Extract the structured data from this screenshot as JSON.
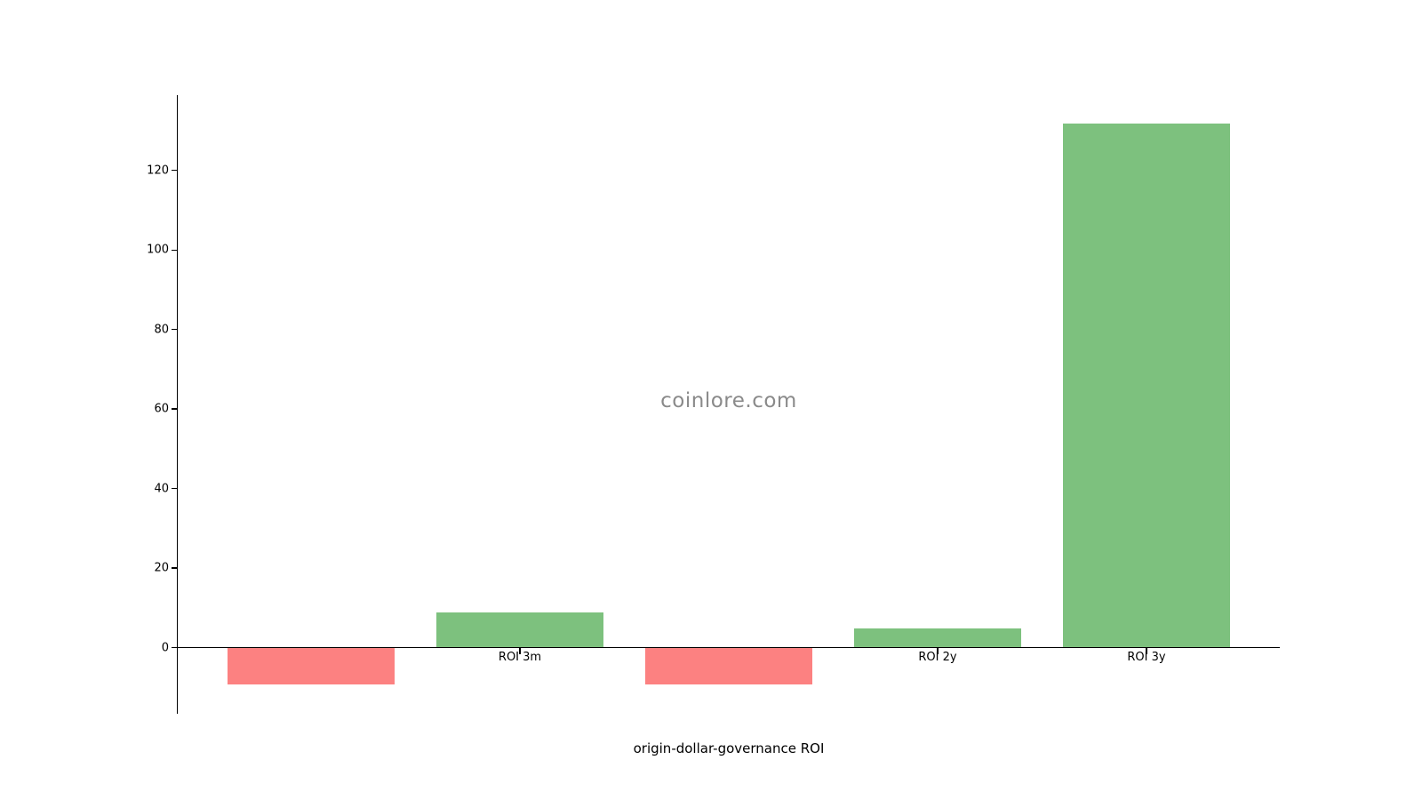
{
  "watermark": "coinlore.com",
  "chart_data": {
    "type": "bar",
    "title": "origin-dollar-governance ROI",
    "title_position": "bottom",
    "categories": [
      "",
      "ROI 3m",
      "",
      "ROI 2y",
      "ROI 3y"
    ],
    "values": [
      -9.2,
      8.9,
      -9.2,
      4.9,
      131.9
    ],
    "note": "bars 1 and 3 are negative (red); their x tick labels are hidden behind the bars",
    "yticks": [
      0,
      20,
      40,
      60,
      80,
      100,
      120
    ],
    "ylim": [
      -16.5,
      139
    ],
    "grid": false,
    "legend": "none",
    "background": "#ffffff",
    "colors": {
      "positive": "#7dc17e",
      "negative": "#fc8181",
      "axis": "#000000",
      "tick_label": "#000000",
      "watermark": "#8a8a8a"
    },
    "watermark": "coinlore.com"
  }
}
